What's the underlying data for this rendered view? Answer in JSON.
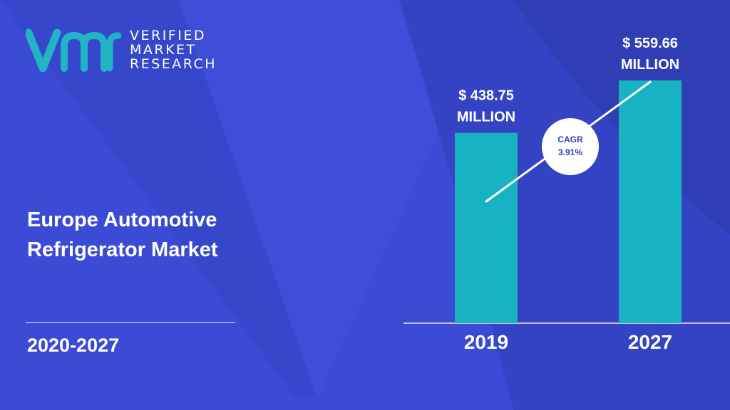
{
  "logo": {
    "line1": "VERIFIED",
    "line2": "MARKET",
    "line3": "RESEARCH"
  },
  "title_line1": "Europe Automotive",
  "title_line2": "Refrigerator Market",
  "period": "2020-2027",
  "cagr": {
    "label": "CAGR",
    "value": "3.91%"
  },
  "colors": {
    "background": "#3b4bd6",
    "bar": "#17b3c2",
    "logo": "#1fb5c4"
  },
  "chart_data": {
    "type": "bar",
    "categories": [
      "2019",
      "2027"
    ],
    "values": [
      438.75,
      559.66
    ],
    "value_labels": [
      [
        "$ 438.75",
        "MILLION"
      ],
      [
        "$ 559.66",
        "MILLION"
      ]
    ],
    "ylim": [
      0,
      559.66
    ],
    "grid": false,
    "legend": "none"
  }
}
